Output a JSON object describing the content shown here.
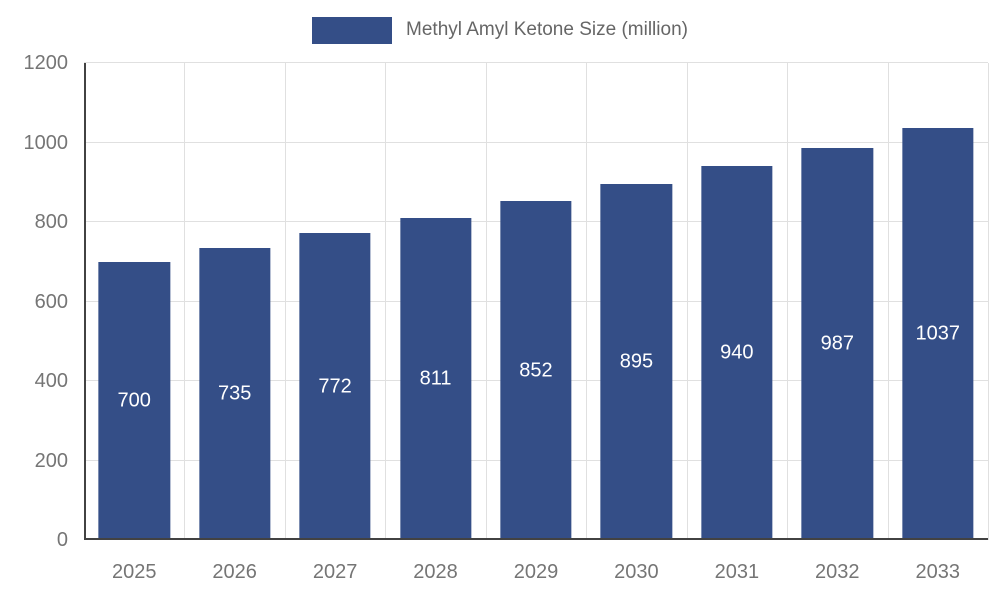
{
  "legend": {
    "label": "Methyl Amyl Ketone Size (million)"
  },
  "colors": {
    "bar": "#344e87",
    "grid": "#e0e0e0",
    "axis": "#424242",
    "tick_text": "#757575",
    "value_label": "#ffffff"
  },
  "chart_data": {
    "type": "bar",
    "title": "Methyl Amyl Ketone Size (million)",
    "categories": [
      "2025",
      "2026",
      "2027",
      "2028",
      "2029",
      "2030",
      "2031",
      "2032",
      "2033"
    ],
    "values": [
      700,
      735,
      772,
      811,
      852,
      895,
      940,
      987,
      1037
    ],
    "series": [
      {
        "name": "Methyl Amyl Ketone Size (million)",
        "values": [
          700,
          735,
          772,
          811,
          852,
          895,
          940,
          987,
          1037
        ]
      }
    ],
    "xlabel": "",
    "ylabel": "",
    "ylim": [
      0,
      1200
    ],
    "yticks": [
      0,
      200,
      400,
      600,
      800,
      1000,
      1200
    ],
    "grid": true,
    "legend_position": "top",
    "value_labels": true
  }
}
